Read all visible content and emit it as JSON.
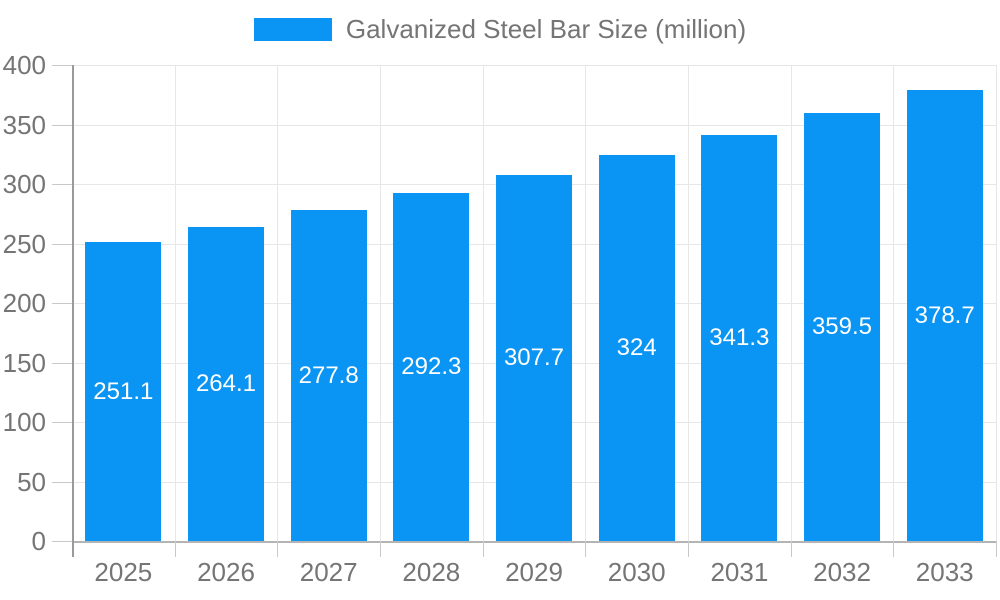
{
  "chart_data": {
    "type": "bar",
    "title": "Galvanized Steel Bar Size (million)",
    "categories": [
      "2025",
      "2026",
      "2027",
      "2028",
      "2029",
      "2030",
      "2031",
      "2032",
      "2033"
    ],
    "values": [
      251.1,
      264.1,
      277.8,
      292.3,
      307.7,
      324,
      341.3,
      359.5,
      378.7
    ],
    "yticks": [
      0,
      50,
      100,
      150,
      200,
      250,
      300,
      350,
      400
    ],
    "ylim": [
      0,
      400
    ],
    "xlabel": "",
    "ylabel": "",
    "grid": true,
    "legend_position": "top-center",
    "colors": {
      "bar": "#0a94f4",
      "value_label": "#ffffff",
      "axis_text": "#757575",
      "gridline": "#e7e7e7",
      "axis_line_y": "#9a9a9a",
      "axis_line_x": "#b4b4b4",
      "tick": "#c9c9c9",
      "background": "#ffffff"
    }
  }
}
